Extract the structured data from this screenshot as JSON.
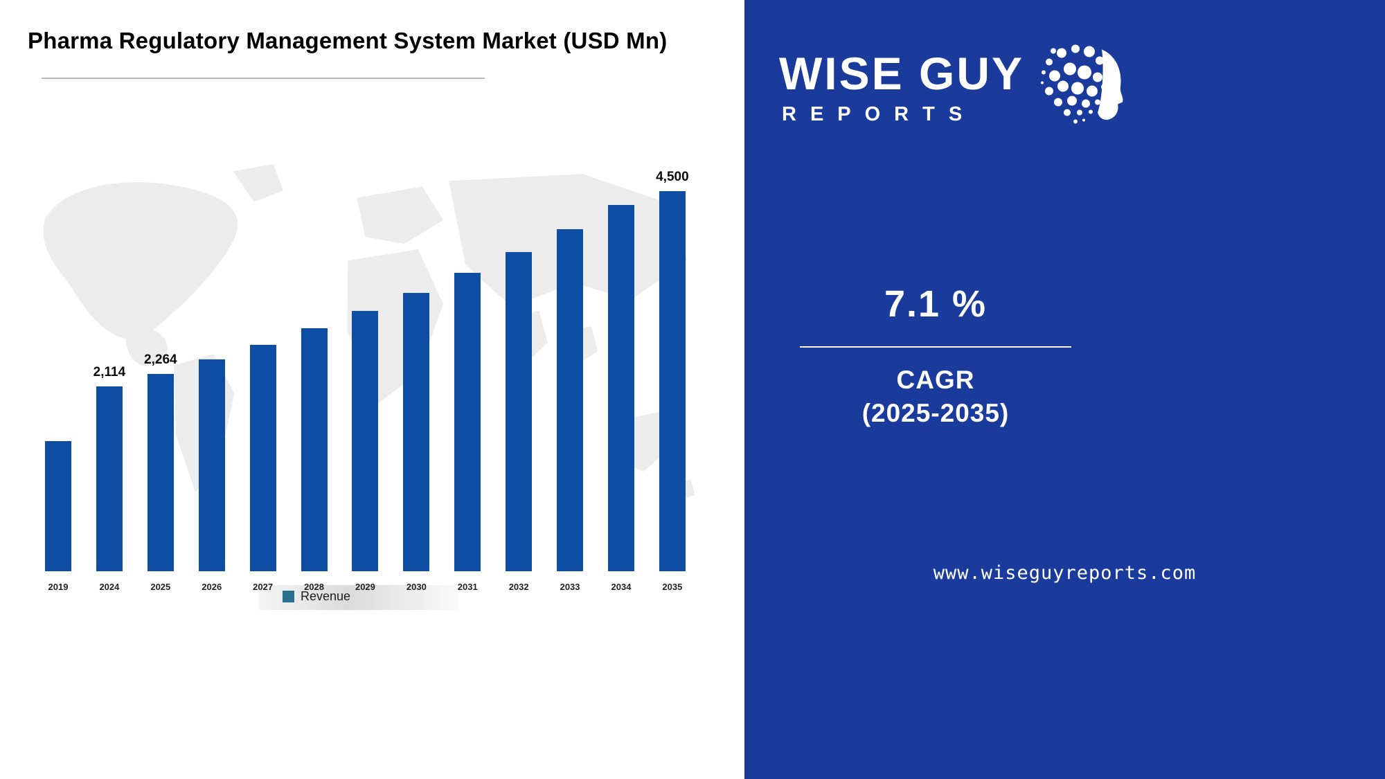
{
  "title": "Pharma Regulatory Management System Market (USD Mn)",
  "chart_data": {
    "type": "bar",
    "title": "Pharma Regulatory Management System Market (USD Mn)",
    "categories": [
      "2019",
      "2024",
      "2025",
      "2026",
      "2027",
      "2028",
      "2029",
      "2030",
      "2031",
      "2032",
      "2033",
      "2034",
      "2035"
    ],
    "values": [
      1490,
      2114,
      2264,
      2425,
      2597,
      2781,
      2979,
      3190,
      3417,
      3659,
      3919,
      4197,
      4500
    ],
    "data_labels": [
      "",
      "2,114",
      "2,264",
      "",
      "",
      "",
      "",
      "",
      "",
      "",
      "",
      "",
      "4,500"
    ],
    "xlabel": "",
    "ylabel": "Revenue (USD Mn)",
    "ylim": [
      0,
      4600
    ],
    "grid": false,
    "legend_position": "bottom",
    "bar_color": "#0e4da4",
    "legend": [
      {
        "label": "Revenue",
        "color": "#2a6f8f"
      }
    ]
  },
  "legend": {
    "revenue_label": "Revenue"
  },
  "sidebar": {
    "bg_color": "#1a3b9c",
    "logo_line1": "WISE GUY",
    "logo_line2": "REPORTS",
    "cagr_value": "7.1 %",
    "cagr_label": "CAGR",
    "cagr_period": "(2025-2035)",
    "website": "www.wiseguyreports.com"
  }
}
